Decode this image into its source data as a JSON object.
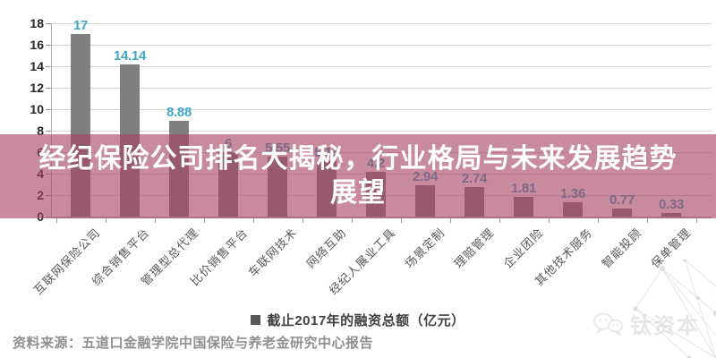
{
  "overlay": {
    "title_line1": "经纪保险公司排名大揭秘，行业格局与未来发展趋势",
    "title_line2": "展望",
    "band_color": "#a64461",
    "text_color": "#ffffff"
  },
  "chart_data": {
    "type": "bar",
    "title": "",
    "categories": [
      "互联网保险公司",
      "综合销售平台",
      "管理型总代理",
      "比价销售平台",
      "车联网技术",
      "网络互助",
      "经纪人展业工具",
      "场景定制",
      "理赔管理",
      "企业团险",
      "其他技术服务",
      "智能投顾",
      "保单管理"
    ],
    "values": [
      17,
      14.14,
      8.88,
      6,
      5.55,
      5.15,
      4.2,
      2.94,
      2.74,
      1.81,
      1.36,
      0.77,
      0.33
    ],
    "value_labels": [
      "17",
      "14.14",
      "8.88",
      "6",
      "5.55",
      "5.15",
      "4.2",
      "2.94",
      "2.74",
      "1.81",
      "1.36",
      "0.77",
      "0.33"
    ],
    "yticks": [
      0,
      2,
      4,
      6,
      8,
      10,
      12,
      14,
      16,
      18
    ],
    "ylim": [
      0,
      18
    ],
    "grid": true,
    "bar_color": "#7f7f7f",
    "value_label_color": "#3fa6c8",
    "legend_position": "bottom",
    "legend": [
      "截止2017年的融资总额（亿元）"
    ]
  },
  "legend": {
    "label": "截止2017年的融资总额（亿元）",
    "marker_color": "#595959"
  },
  "footer": {
    "source": "资料来源：五道口金融学院中国保险与养老金研究中心报告"
  },
  "watermark": {
    "text": "钛资本"
  }
}
